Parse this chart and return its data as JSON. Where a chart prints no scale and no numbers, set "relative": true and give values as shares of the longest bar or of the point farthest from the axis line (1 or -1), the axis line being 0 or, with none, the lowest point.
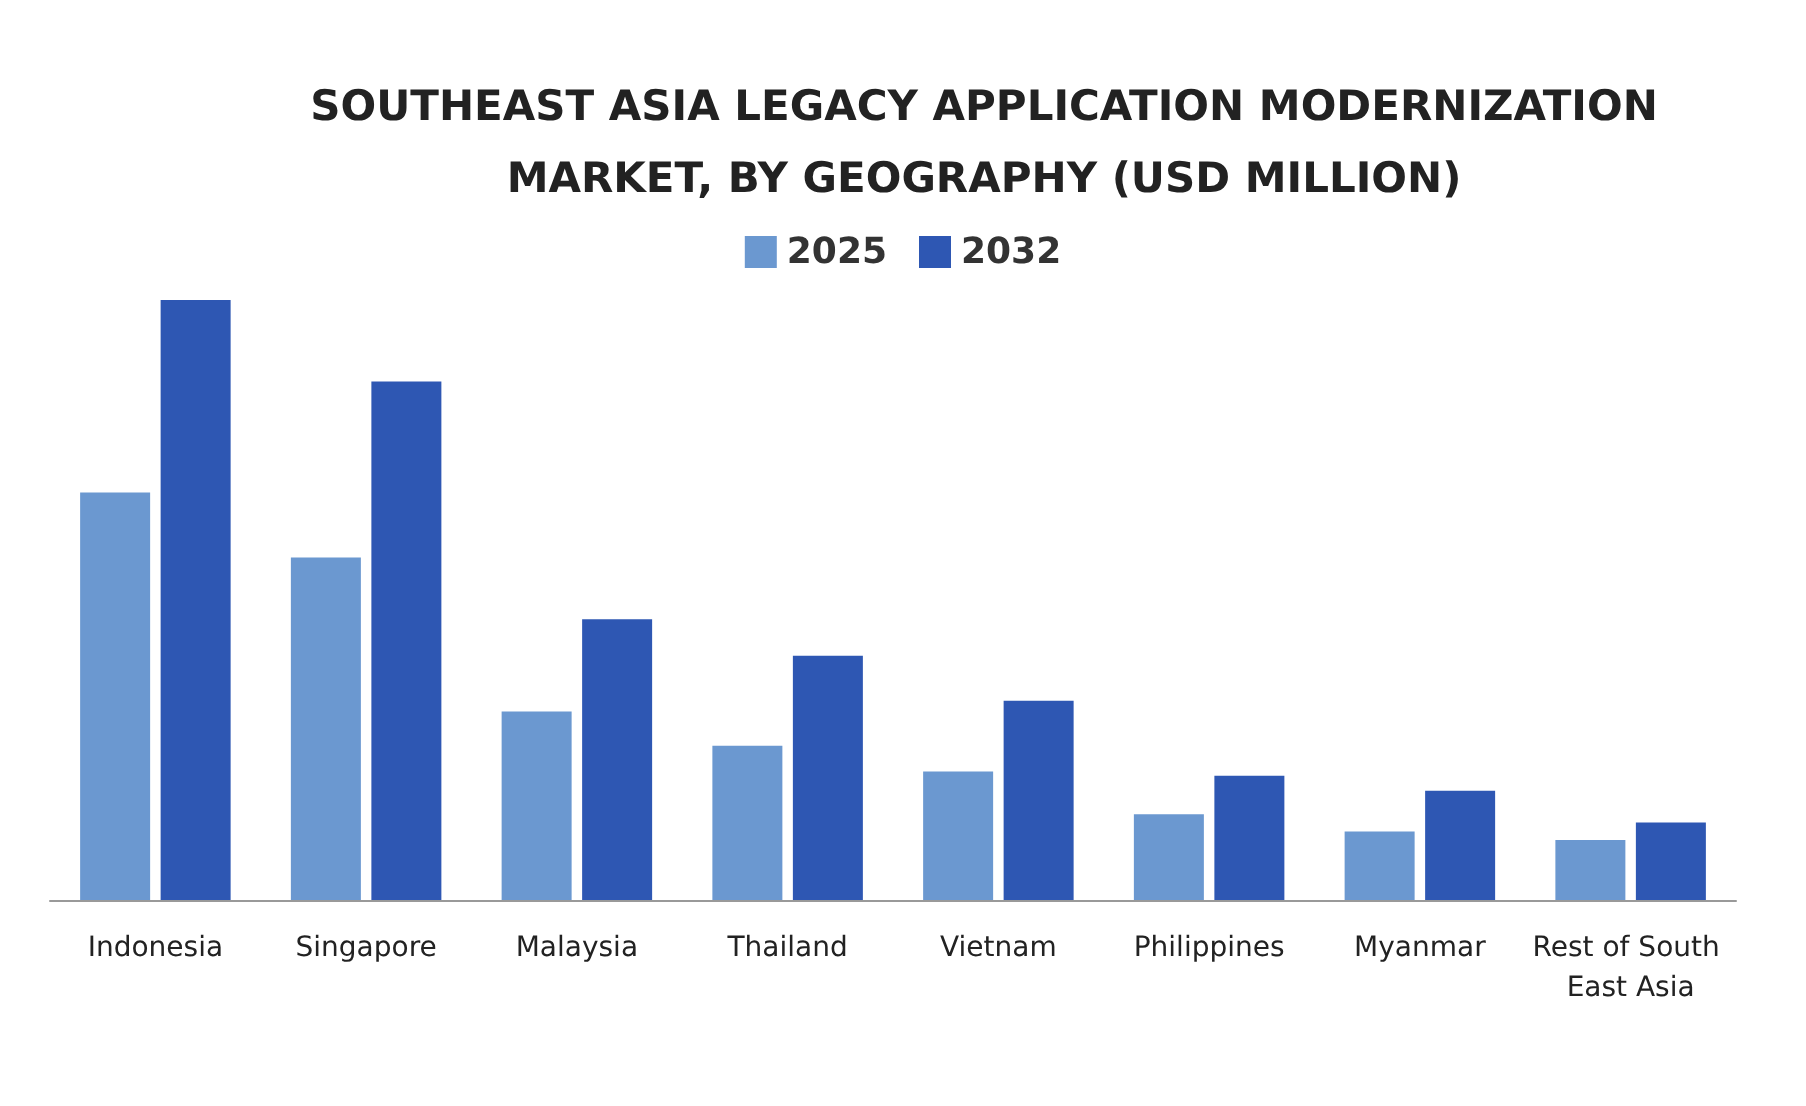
{
  "chart_data": {
    "type": "bar",
    "title": "SOUTHEAST ASIA LEGACY APPLICATION MODERNIZATION\nMARKET, BY GEOGRAPHY (USD MILLION)",
    "relative": true,
    "legend": "top",
    "grid": false,
    "categories": [
      "Indonesia",
      "Singapore",
      "Malaysia",
      "Thailand",
      "Vietnam",
      "Philippines",
      "Myanmar",
      "Rest of South East Asia"
    ],
    "series": [
      {
        "name": "2025",
        "color": "#6b98d0",
        "values": [
          0.679,
          0.571,
          0.314,
          0.257,
          0.214,
          0.143,
          0.114,
          0.1
        ]
      },
      {
        "name": "2032",
        "color": "#2e57b3",
        "values": [
          1,
          0.864,
          0.468,
          0.407,
          0.332,
          0.207,
          0.182,
          0.129
        ]
      }
    ]
  }
}
